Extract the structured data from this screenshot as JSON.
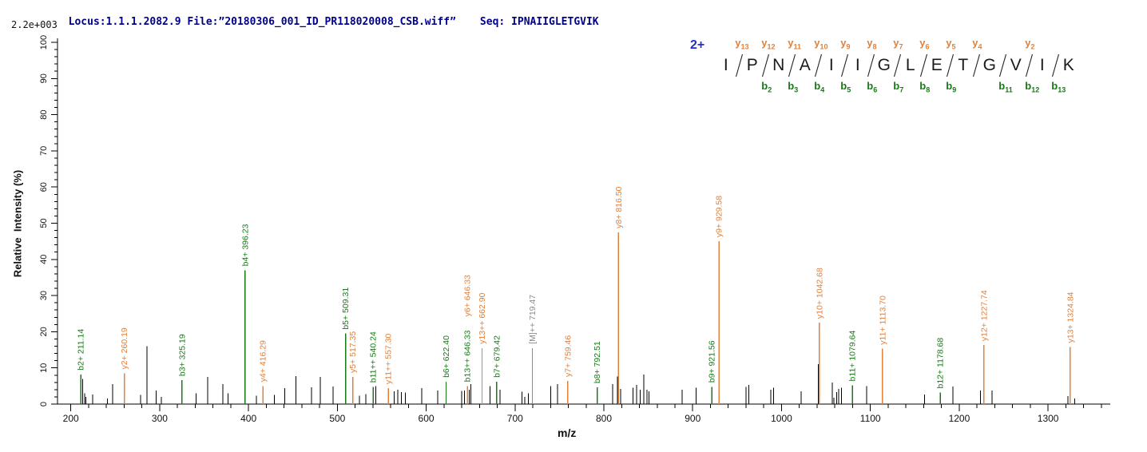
{
  "header": {
    "locus_file": "Locus:1.1.1.2082.9 File:”20180306_001_ID_PR118020008_CSB.wiff”",
    "seq_label": "Seq: IPNAIIGLETGVIK",
    "max_intensity": "2.2e+003"
  },
  "axes": {
    "x_label": "m/z",
    "y_label": "Relative  Intensity (%)"
  },
  "colors": {
    "b_ion": "#177a17",
    "y_ion": "#e0813c",
    "precursor": "#8a8a8a",
    "unassigned": "#000000",
    "axis": "#000000",
    "header_text": "#00008b",
    "charge_text": "#2230cc"
  },
  "ladder": {
    "charge": "2+",
    "residues": [
      "I",
      "P",
      "N",
      "A",
      "I",
      "I",
      "G",
      "L",
      "E",
      "T",
      "G",
      "V",
      "I",
      "K"
    ],
    "boundaries": [
      {
        "y": 13,
        "b": null
      },
      {
        "y": 12,
        "b": 2
      },
      {
        "y": 11,
        "b": 3
      },
      {
        "y": 10,
        "b": 4
      },
      {
        "y": 9,
        "b": 5
      },
      {
        "y": 8,
        "b": 6
      },
      {
        "y": 7,
        "b": 7
      },
      {
        "y": 6,
        "b": 8
      },
      {
        "y": 5,
        "b": 9
      },
      {
        "y": 4,
        "b": null
      },
      {
        "y": null,
        "b": 11
      },
      {
        "y": 2,
        "b": 12
      },
      {
        "y": null,
        "b": 13
      }
    ]
  },
  "chart_data": {
    "type": "bar",
    "subtype": "ms2-mass-spectrum",
    "title": "",
    "xlabel": "m/z",
    "ylabel": "Relative  Intensity (%)",
    "x_domain": [
      185,
      1370
    ],
    "ylim": [
      0,
      100
    ],
    "x_major_tick_step": 100,
    "x_major_ticks": [
      200,
      300,
      400,
      500,
      600,
      700,
      800,
      900,
      1000,
      1100,
      1200,
      1300
    ],
    "x_minor_tick_step": 20,
    "y_major_tick_step": 10,
    "y_minor_tick_step": 2,
    "grid": false,
    "peaks": [
      {
        "mz": 211.14,
        "intensity": 8.2,
        "ion": "b",
        "label": "b2+ 211.14"
      },
      {
        "mz": 213.2,
        "intensity": 7.0,
        "ion": "unassigned"
      },
      {
        "mz": 215.5,
        "intensity": 3.0,
        "ion": "unassigned"
      },
      {
        "mz": 217.0,
        "intensity": 2.0,
        "ion": "unassigned"
      },
      {
        "mz": 224.6,
        "intensity": 2.7,
        "ion": "unassigned"
      },
      {
        "mz": 241.0,
        "intensity": 1.5,
        "ion": "unassigned"
      },
      {
        "mz": 247.0,
        "intensity": 5.5,
        "ion": "unassigned"
      },
      {
        "mz": 260.19,
        "intensity": 8.5,
        "ion": "y",
        "label": "y2+ 260.19"
      },
      {
        "mz": 278.5,
        "intensity": 2.5,
        "ion": "unassigned"
      },
      {
        "mz": 285.8,
        "intensity": 16.0,
        "ion": "unassigned"
      },
      {
        "mz": 296.0,
        "intensity": 3.8,
        "ion": "unassigned"
      },
      {
        "mz": 302.0,
        "intensity": 2.0,
        "ion": "unassigned"
      },
      {
        "mz": 325.19,
        "intensity": 6.6,
        "ion": "b",
        "label": "b3+ 325.19"
      },
      {
        "mz": 341.0,
        "intensity": 3.0,
        "ion": "unassigned"
      },
      {
        "mz": 354.0,
        "intensity": 7.5,
        "ion": "unassigned"
      },
      {
        "mz": 371.0,
        "intensity": 5.5,
        "ion": "unassigned"
      },
      {
        "mz": 377.0,
        "intensity": 3.0,
        "ion": "unassigned"
      },
      {
        "mz": 396.23,
        "intensity": 37.0,
        "ion": "b",
        "label": "b4+ 396.23"
      },
      {
        "mz": 409.0,
        "intensity": 2.3,
        "ion": "unassigned"
      },
      {
        "mz": 416.29,
        "intensity": 5.0,
        "ion": "y",
        "label": "y4+ 416.29"
      },
      {
        "mz": 429.0,
        "intensity": 2.5,
        "ion": "unassigned"
      },
      {
        "mz": 441.0,
        "intensity": 4.4,
        "ion": "unassigned"
      },
      {
        "mz": 453.6,
        "intensity": 7.7,
        "ion": "unassigned"
      },
      {
        "mz": 471.0,
        "intensity": 4.6,
        "ion": "unassigned"
      },
      {
        "mz": 481.0,
        "intensity": 7.5,
        "ion": "unassigned"
      },
      {
        "mz": 495.0,
        "intensity": 4.9,
        "ion": "unassigned"
      },
      {
        "mz": 509.31,
        "intensity": 19.5,
        "ion": "b",
        "label": "b5+ 509.31"
      },
      {
        "mz": 517.35,
        "intensity": 7.5,
        "ion": "y",
        "label": "y5+ 517.35"
      },
      {
        "mz": 525.0,
        "intensity": 2.3,
        "ion": "unassigned"
      },
      {
        "mz": 532.0,
        "intensity": 2.8,
        "ion": "unassigned"
      },
      {
        "mz": 540.24,
        "intensity": 4.8,
        "ion": "b",
        "label": "b11++ 540.24"
      },
      {
        "mz": 543.5,
        "intensity": 5.0,
        "ion": "unassigned"
      },
      {
        "mz": 557.3,
        "intensity": 4.4,
        "ion": "y",
        "label": "y11++ 557.30"
      },
      {
        "mz": 564.0,
        "intensity": 3.5,
        "ion": "unassigned"
      },
      {
        "mz": 568.0,
        "intensity": 4.0,
        "ion": "unassigned"
      },
      {
        "mz": 572.0,
        "intensity": 3.3,
        "ion": "unassigned"
      },
      {
        "mz": 576.5,
        "intensity": 3.2,
        "ion": "unassigned"
      },
      {
        "mz": 595.0,
        "intensity": 4.4,
        "ion": "unassigned"
      },
      {
        "mz": 613.0,
        "intensity": 3.8,
        "ion": "unassigned"
      },
      {
        "mz": 622.4,
        "intensity": 6.2,
        "ion": "b",
        "label": "b6+ 622.40"
      },
      {
        "mz": 640.0,
        "intensity": 3.6,
        "ion": "unassigned"
      },
      {
        "mz": 643.0,
        "intensity": 3.7,
        "ion": "unassigned"
      },
      {
        "mz": 646.33,
        "intensity": 5.0,
        "ion": "b",
        "label": "b13++ 646.33"
      },
      {
        "mz": 646.33,
        "intensity": 5.0,
        "ion": "y",
        "label": "y6+ 646.33",
        "label_offset": 82
      },
      {
        "mz": 648.5,
        "intensity": 4.0,
        "ion": "unassigned"
      },
      {
        "mz": 650.5,
        "intensity": 5.5,
        "ion": "unassigned"
      },
      {
        "mz": 662.9,
        "intensity": 15.5,
        "ion": "y",
        "label": "y13++ 662.90"
      },
      {
        "mz": 672.0,
        "intensity": 5.0,
        "ion": "unassigned"
      },
      {
        "mz": 679.42,
        "intensity": 6.2,
        "ion": "b",
        "label": "b7+ 679.42"
      },
      {
        "mz": 683.0,
        "intensity": 4.0,
        "ion": "unassigned"
      },
      {
        "mz": 708.0,
        "intensity": 3.4,
        "ion": "unassigned"
      },
      {
        "mz": 711.0,
        "intensity": 2.0,
        "ion": "unassigned"
      },
      {
        "mz": 715.0,
        "intensity": 3.0,
        "ion": "unassigned"
      },
      {
        "mz": 719.47,
        "intensity": 15.5,
        "ion": "precursor",
        "label": "[M]++ 719.47"
      },
      {
        "mz": 740.0,
        "intensity": 5.0,
        "ion": "unassigned"
      },
      {
        "mz": 748.0,
        "intensity": 5.5,
        "ion": "unassigned"
      },
      {
        "mz": 759.46,
        "intensity": 6.4,
        "ion": "y",
        "label": "y7+ 759.46"
      },
      {
        "mz": 792.51,
        "intensity": 4.6,
        "ion": "b",
        "label": "b8+ 792.51"
      },
      {
        "mz": 810.0,
        "intensity": 5.5,
        "ion": "unassigned"
      },
      {
        "mz": 815.2,
        "intensity": 7.6,
        "ion": "unassigned"
      },
      {
        "mz": 816.5,
        "intensity": 47.5,
        "ion": "y",
        "label": "y8+ 816.50"
      },
      {
        "mz": 819.0,
        "intensity": 4.2,
        "ion": "unassigned"
      },
      {
        "mz": 833.0,
        "intensity": 4.5,
        "ion": "unassigned"
      },
      {
        "mz": 837.0,
        "intensity": 5.3,
        "ion": "unassigned"
      },
      {
        "mz": 841.0,
        "intensity": 4.0,
        "ion": "unassigned"
      },
      {
        "mz": 845.0,
        "intensity": 8.2,
        "ion": "unassigned"
      },
      {
        "mz": 848.5,
        "intensity": 4.0,
        "ion": "unassigned"
      },
      {
        "mz": 851.0,
        "intensity": 3.5,
        "ion": "unassigned"
      },
      {
        "mz": 888.0,
        "intensity": 4.0,
        "ion": "unassigned"
      },
      {
        "mz": 904.0,
        "intensity": 4.5,
        "ion": "unassigned"
      },
      {
        "mz": 921.56,
        "intensity": 4.8,
        "ion": "b",
        "label": "b9+ 921.56"
      },
      {
        "mz": 929.58,
        "intensity": 45.0,
        "ion": "y",
        "label": "y9+ 929.58"
      },
      {
        "mz": 960.0,
        "intensity": 4.8,
        "ion": "unassigned"
      },
      {
        "mz": 963.0,
        "intensity": 5.3,
        "ion": "unassigned"
      },
      {
        "mz": 988.0,
        "intensity": 4.0,
        "ion": "unassigned"
      },
      {
        "mz": 991.0,
        "intensity": 4.5,
        "ion": "unassigned"
      },
      {
        "mz": 1022.0,
        "intensity": 3.5,
        "ion": "unassigned"
      },
      {
        "mz": 1041.2,
        "intensity": 11.0,
        "ion": "unassigned"
      },
      {
        "mz": 1042.68,
        "intensity": 22.5,
        "ion": "y",
        "label": "y10+ 1042.68"
      },
      {
        "mz": 1057.0,
        "intensity": 6.0,
        "ion": "unassigned"
      },
      {
        "mz": 1059.0,
        "intensity": 1.8,
        "ion": "unassigned"
      },
      {
        "mz": 1062.0,
        "intensity": 3.3,
        "ion": "unassigned"
      },
      {
        "mz": 1064.5,
        "intensity": 4.2,
        "ion": "unassigned"
      },
      {
        "mz": 1067.5,
        "intensity": 4.5,
        "ion": "unassigned"
      },
      {
        "mz": 1079.64,
        "intensity": 5.2,
        "ion": "b",
        "label": "b11+ 1079.64"
      },
      {
        "mz": 1096.0,
        "intensity": 5.0,
        "ion": "unassigned"
      },
      {
        "mz": 1113.7,
        "intensity": 15.3,
        "ion": "y",
        "label": "y11+ 1113.70"
      },
      {
        "mz": 1161.0,
        "intensity": 2.6,
        "ion": "unassigned"
      },
      {
        "mz": 1178.68,
        "intensity": 3.2,
        "ion": "b",
        "label": "b12+ 1178.68"
      },
      {
        "mz": 1193.0,
        "intensity": 4.9,
        "ion": "unassigned"
      },
      {
        "mz": 1224.0,
        "intensity": 3.7,
        "ion": "unassigned"
      },
      {
        "mz": 1227.74,
        "intensity": 16.3,
        "ion": "y",
        "label": "y12+ 1227.74"
      },
      {
        "mz": 1237.0,
        "intensity": 3.8,
        "ion": "unassigned"
      },
      {
        "mz": 1322.5,
        "intensity": 2.2,
        "ion": "unassigned"
      },
      {
        "mz": 1324.84,
        "intensity": 15.8,
        "ion": "y",
        "label": "y13+ 1324.84"
      },
      {
        "mz": 1330.0,
        "intensity": 1.6,
        "ion": "unassigned"
      }
    ]
  }
}
